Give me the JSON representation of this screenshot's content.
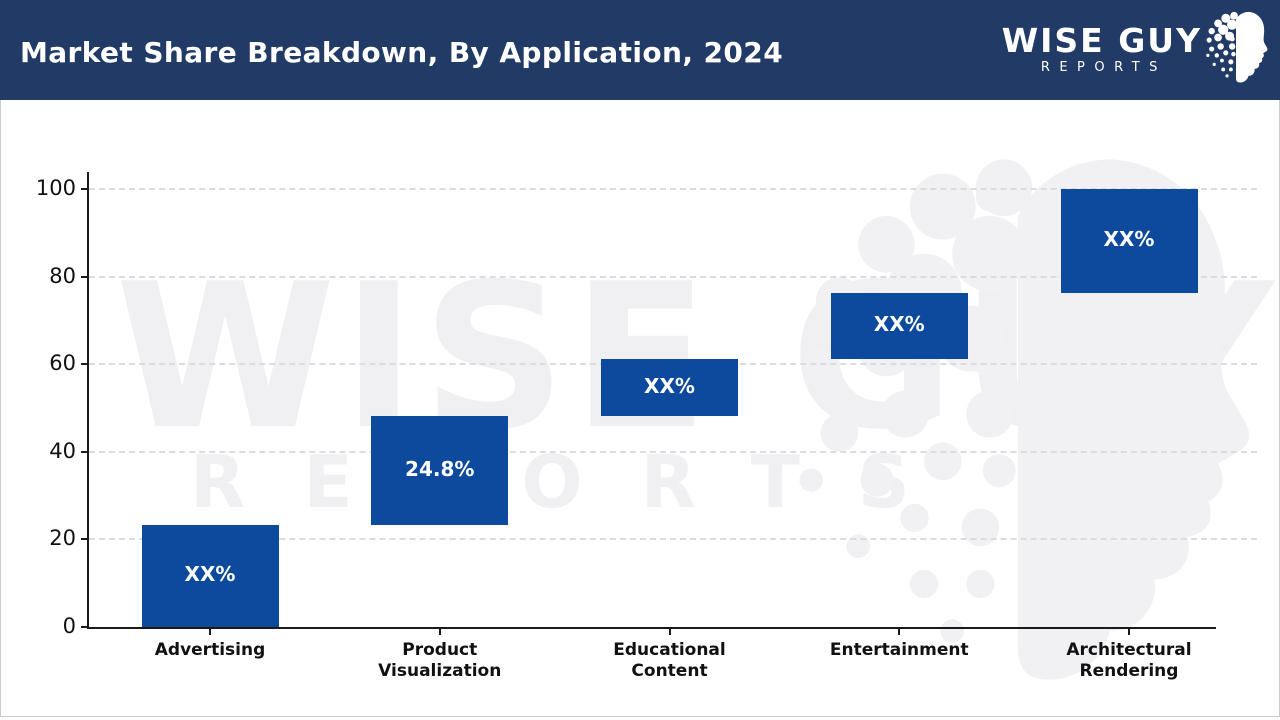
{
  "header": {
    "title": "Market Share Breakdown, By Application, 2024",
    "background": "#213a66",
    "logo": {
      "line1": "WISE GUY",
      "line2": "REPORTS"
    }
  },
  "watermark": {
    "line1": "WISE GUY",
    "line2": "REPORTS"
  },
  "chart_data": {
    "type": "bar",
    "subtype": "waterfall",
    "title": "Market Share Breakdown, By Application, 2024",
    "categories": [
      [
        "Advertising"
      ],
      [
        "Product",
        "Visualization"
      ],
      [
        "Educational",
        "Content"
      ],
      [
        "Entertainment"
      ],
      [
        "Architectural",
        "Rendering"
      ]
    ],
    "bar_labels": [
      "XX%",
      "24.8%",
      "XX%",
      "XX%",
      "XX%"
    ],
    "segments": [
      {
        "start": 0,
        "end": 23.3
      },
      {
        "start": 23.3,
        "end": 48.1
      },
      {
        "start": 48.1,
        "end": 61.2
      },
      {
        "start": 61.2,
        "end": 76.2
      },
      {
        "start": 76.2,
        "end": 100.0
      }
    ],
    "values": [
      23.3,
      24.8,
      13.1,
      15.0,
      23.8
    ],
    "yticks": [
      0,
      20,
      40,
      60,
      80,
      100
    ],
    "ylim": [
      0,
      105
    ],
    "xlabel": "",
    "ylabel": "",
    "grid": "dashed-horizontal",
    "legend": "none",
    "bar_color": "#0d4a9e",
    "label_color": "#ffffff"
  }
}
